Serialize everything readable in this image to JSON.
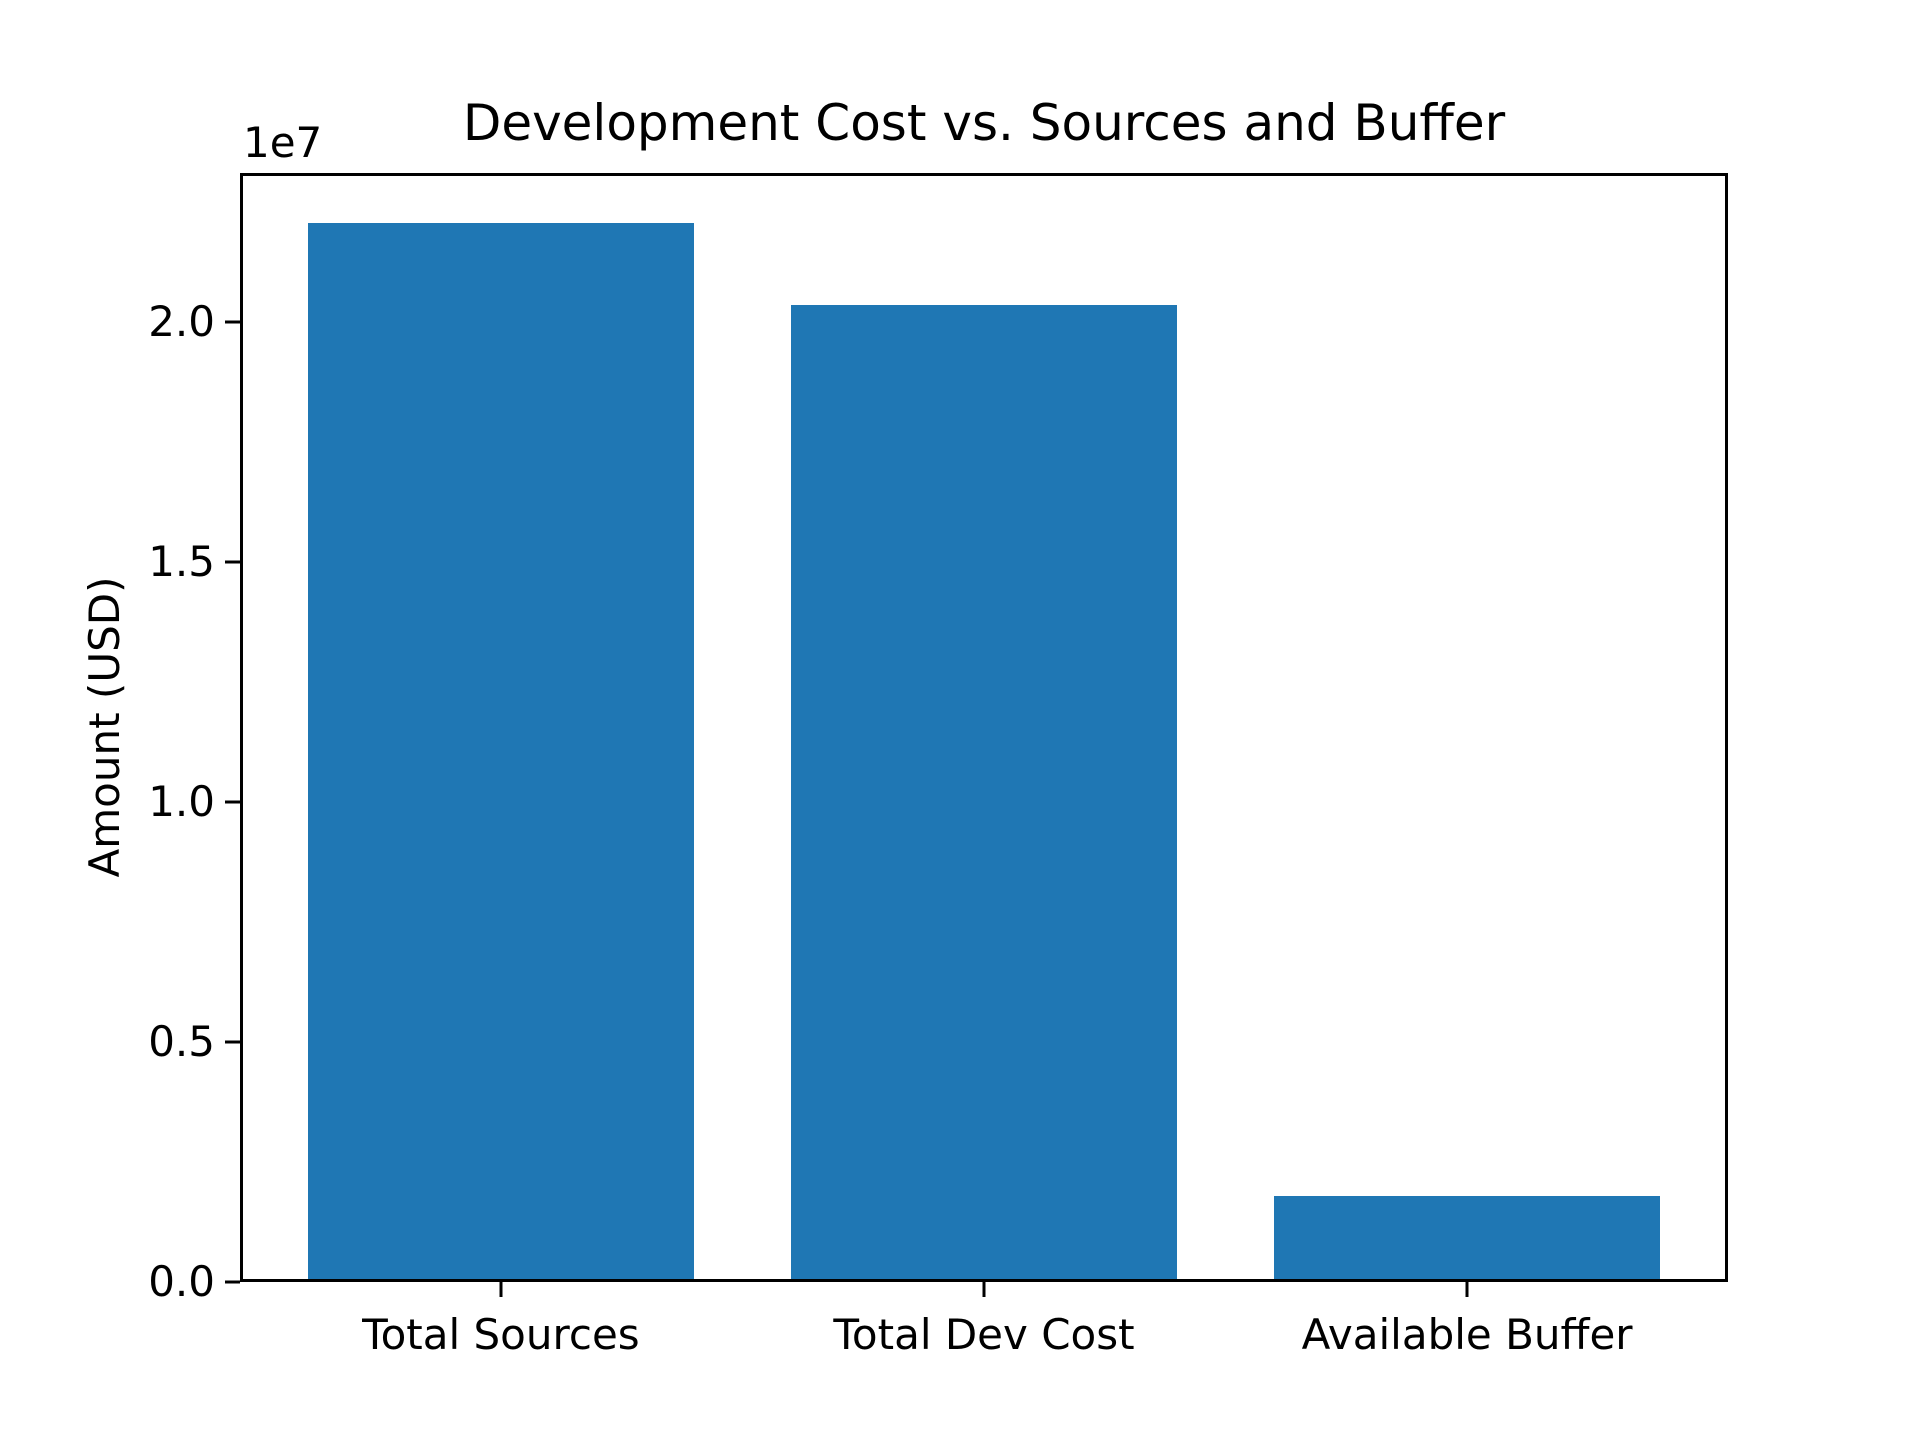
{
  "figure": {
    "background": "#ffffff",
    "text_color": "#000000"
  },
  "chart_data": {
    "type": "bar",
    "title": "Development Cost vs. Sources and Buffer",
    "xlabel": "",
    "ylabel": "Amount (USD)",
    "axis_offset_text": "1e7",
    "categories": [
      "Total Sources",
      "Total Dev Cost",
      "Available Buffer"
    ],
    "values": [
      22000000,
      20280000,
      1720000
    ],
    "bar_color": "#1f77b4",
    "ylim": [
      0,
      23100000
    ],
    "yticks": [
      0,
      5000000,
      10000000,
      15000000,
      20000000
    ],
    "ytick_labels": [
      "0.0",
      "0.5",
      "1.0",
      "1.5",
      "2.0"
    ],
    "grid": false,
    "legend": "none",
    "bar_width_fraction": 0.8
  }
}
